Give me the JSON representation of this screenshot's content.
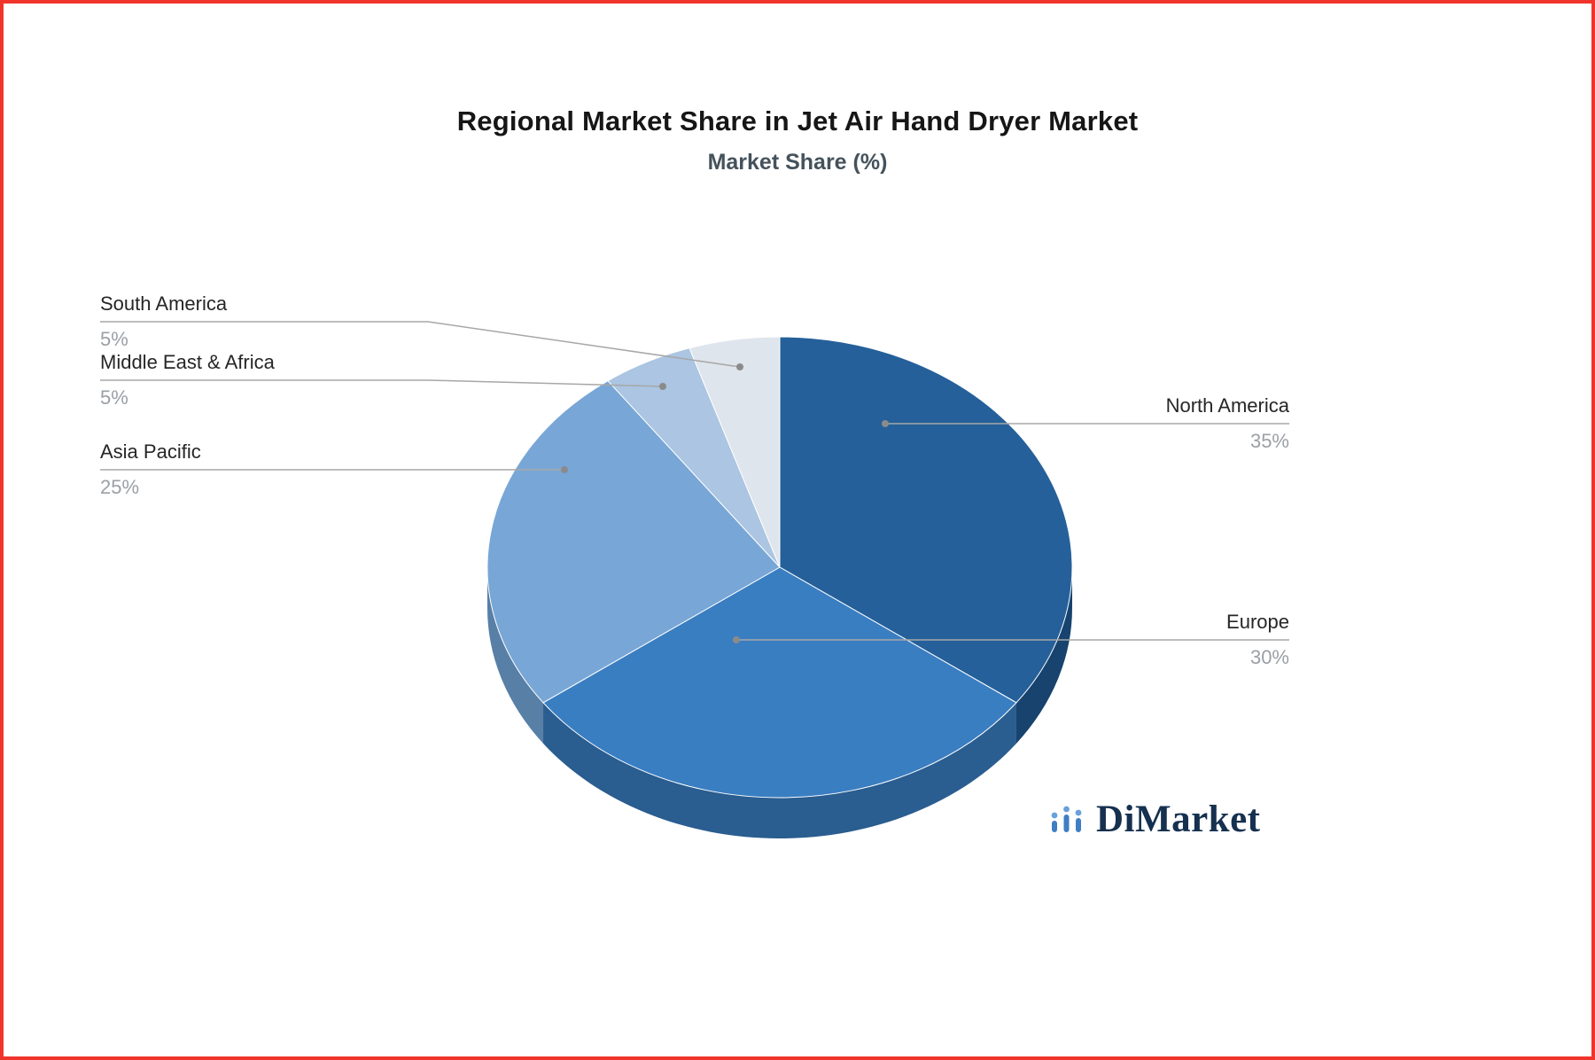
{
  "page": {
    "title": "Regional Market Share in Jet Air Hand Dryer Market",
    "subtitle": "Market Share (%)"
  },
  "brand": {
    "name": "DiMarket",
    "icon": "bar-chart-logo-icon",
    "icon_color": "#3f7ec4",
    "icon_dot_color": "#68a0d8",
    "text_color": "#16304f"
  },
  "chart_data": {
    "type": "pie",
    "title": "Regional Market Share in Jet Air Hand Dryer Market",
    "subtitle": "Market Share (%)",
    "unit": "%",
    "style": "3d",
    "direction": "clockwise",
    "start_angle_deg": 0,
    "legend_position": "none",
    "connector_color": "#a7a7a7",
    "marker_color": "#8b8b8b",
    "slices": [
      {
        "label": "North America",
        "value": 35,
        "color": "#25609a",
        "side_color": "#17436e"
      },
      {
        "label": "Europe",
        "value": 30,
        "color": "#3a7ec2",
        "side_color": "#2a5d90"
      },
      {
        "label": "Asia Pacific",
        "value": 25,
        "color": "#78a6d6",
        "side_color": "#587fa6"
      },
      {
        "label": "Middle East & Africa",
        "value": 5,
        "color": "#abc5e2",
        "side_color": "#8195ab"
      },
      {
        "label": "South America",
        "value": 5,
        "color": "#dfe5ec",
        "side_color": "#a9aeb5"
      }
    ]
  },
  "callouts": [
    {
      "label": "North America",
      "value_text": "35%"
    },
    {
      "label": "Europe",
      "value_text": "30%"
    },
    {
      "label": "Asia Pacific",
      "value_text": "25%"
    },
    {
      "label": "South America",
      "value_text": "5%"
    },
    {
      "label": "Middle East & Africa",
      "value_text": "5%"
    }
  ]
}
